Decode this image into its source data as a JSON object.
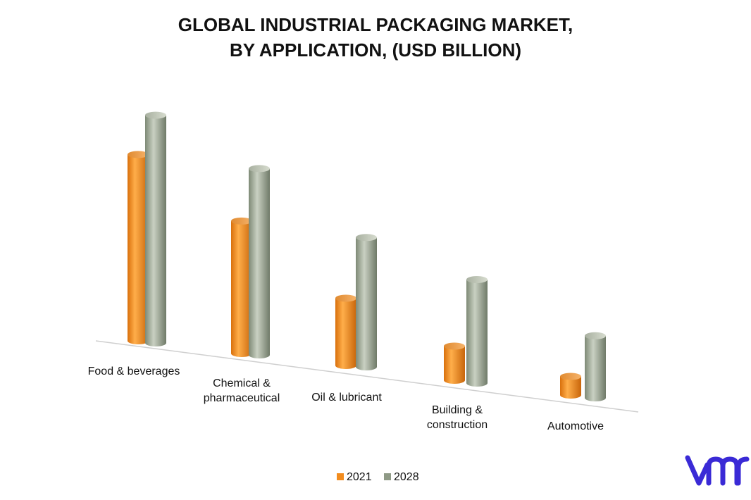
{
  "chart_data": {
    "type": "bar",
    "title_lines": [
      "GLOBAL INDUSTRIAL PACKAGING MARKET,",
      "BY APPLICATION, (USD BILLION)"
    ],
    "categories": [
      [
        "Food & beverages"
      ],
      [
        "Chemical &",
        "pharmaceutical"
      ],
      [
        "Oil & lubricant"
      ],
      [
        "Building &",
        "construction"
      ],
      [
        "Automotive"
      ]
    ],
    "series": [
      {
        "name": "2021",
        "values": [
          18.0,
          12.8,
          6.5,
          3.3,
          1.8
        ]
      },
      {
        "name": "2028",
        "values": [
          22.0,
          18.0,
          12.5,
          10.0,
          6.0
        ]
      }
    ],
    "ylim": [
      0,
      25
    ],
    "grid": false,
    "legend_position": "bottom",
    "colors": {
      "2021": "#f28c1e",
      "2028": "#8f9a86"
    }
  },
  "logo": {
    "text": "vmr",
    "color": "#3a2ad6"
  }
}
